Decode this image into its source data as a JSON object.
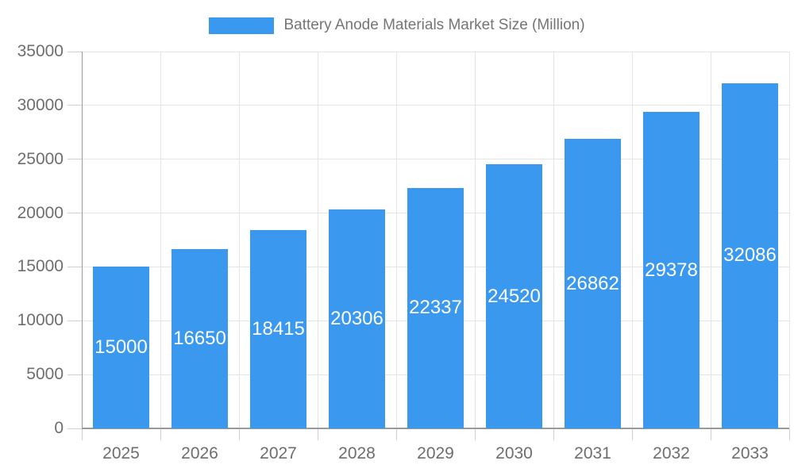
{
  "legend": {
    "label": "Battery Anode Materials Market Size (Million)"
  },
  "chart_data": {
    "type": "bar",
    "title": "Battery Anode Materials Market Size (Million)",
    "categories": [
      "2025",
      "2026",
      "2027",
      "2028",
      "2029",
      "2030",
      "2031",
      "2032",
      "2033"
    ],
    "values": [
      15000,
      16650,
      18415,
      20306,
      22337,
      24520,
      26862,
      29378,
      32086
    ],
    "xlabel": "",
    "ylabel": "",
    "ylim": [
      0,
      35000
    ],
    "ytick_step": 5000,
    "ytick_labels": [
      "0",
      "5000",
      "10000",
      "15000",
      "20000",
      "25000",
      "30000",
      "35000"
    ],
    "grid": true,
    "legend_position": "top-center",
    "value_labels": "inside-center-white",
    "colors": {
      "bar": "#3a99ee",
      "value_label": "#ffffff",
      "grid": "#e4e4e4",
      "tick": "#cfcfcf",
      "axis": "#9a9a9a",
      "tick_text": "#6e6e6e",
      "legend_text": "#757575"
    }
  }
}
